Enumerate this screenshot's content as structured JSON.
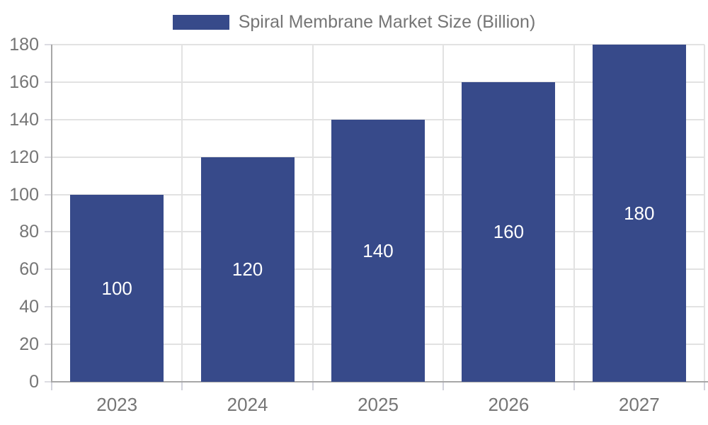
{
  "chart_data": {
    "type": "bar",
    "title": "",
    "categories": [
      "2023",
      "2024",
      "2025",
      "2026",
      "2027"
    ],
    "series": [
      {
        "name": "Spiral Membrane Market Size (Billion)",
        "values": [
          100,
          120,
          140,
          160,
          180
        ]
      }
    ],
    "value_labels": [
      "100",
      "120",
      "140",
      "160",
      "180"
    ],
    "value_label_position": "inside-center",
    "xlabel": "",
    "ylabel": "",
    "ylim": [
      0,
      180
    ],
    "yticks": [
      0,
      20,
      40,
      60,
      80,
      100,
      120,
      140,
      160,
      180
    ],
    "grid": {
      "horizontal": true,
      "vertical": true
    },
    "legend_position": "top-center"
  },
  "colors": {
    "bar": "#374a8a",
    "value_label": "#ffffff",
    "tick_text": "#757575",
    "grid": "#e2e2e2",
    "axis": "#a7a7a7",
    "background": "#ffffff"
  }
}
